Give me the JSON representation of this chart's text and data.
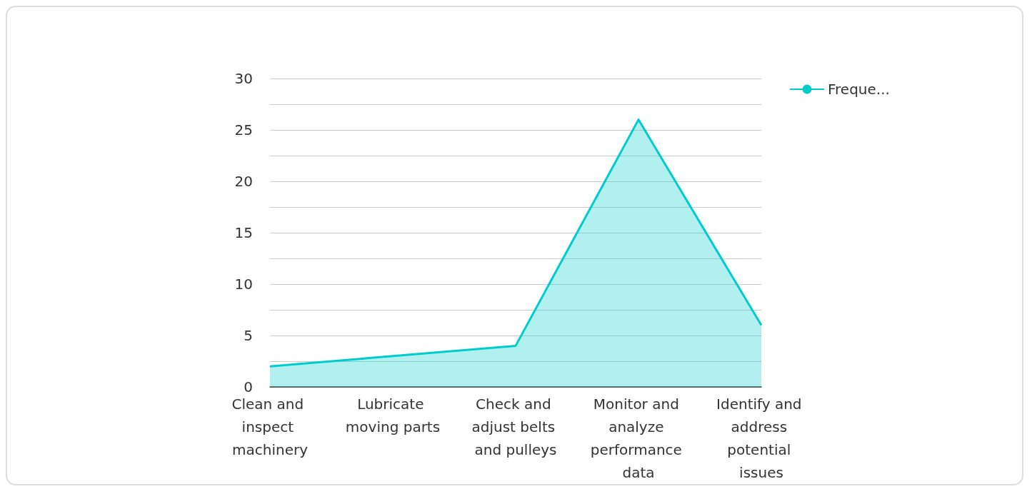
{
  "chart_data": {
    "type": "area",
    "categories": [
      "Clean and inspect machinery",
      "Lubricate moving parts",
      "Check and adjust belts and pulleys",
      "Monitor and analyze performance data",
      "Identify and address potential issues"
    ],
    "series": [
      {
        "name": "Freque...",
        "color": "#00cccc",
        "values": [
          2,
          3,
          4,
          26,
          6
        ]
      }
    ],
    "ylim": [
      0,
      30
    ],
    "yticks": [
      0,
      {
        "value": 2.5,
        "label": null
      },
      5,
      {
        "value": 7.5,
        "label": null
      },
      10,
      {
        "value": 12.5,
        "label": null
      },
      15,
      {
        "value": 17.5,
        "label": null
      },
      20,
      {
        "value": 22.5,
        "label": null
      },
      25,
      {
        "value": 27.5,
        "label": null
      },
      30
    ],
    "grid": "y",
    "legend": "top right"
  }
}
